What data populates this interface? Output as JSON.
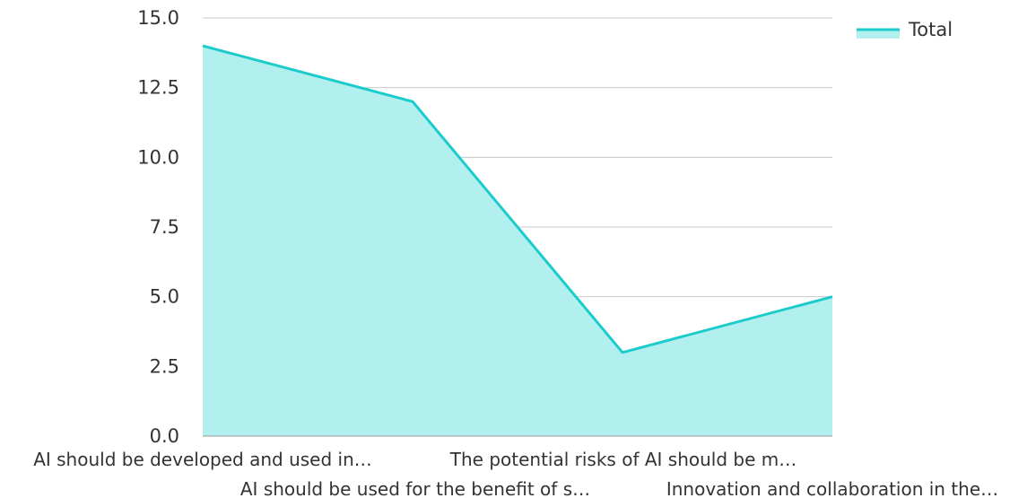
{
  "chart_data": {
    "type": "area",
    "title": "",
    "xlabel": "",
    "ylabel": "",
    "categories": [
      "AI should be developed and used in…",
      "AI should be used for the benefit of s…",
      "The potential risks of AI should be m…",
      "Innovation and collaboration in the…"
    ],
    "series": [
      {
        "name": "Total",
        "values": [
          14,
          12,
          3,
          5
        ],
        "line_color": "#1ccccc",
        "fill_color": "#b2efef"
      }
    ],
    "ylim": [
      0,
      15
    ],
    "yticks": [
      "0.0",
      "2.5",
      "5.0",
      "7.5",
      "10.0",
      "12.5",
      "15.0"
    ],
    "grid": true,
    "legend": "top-right"
  }
}
